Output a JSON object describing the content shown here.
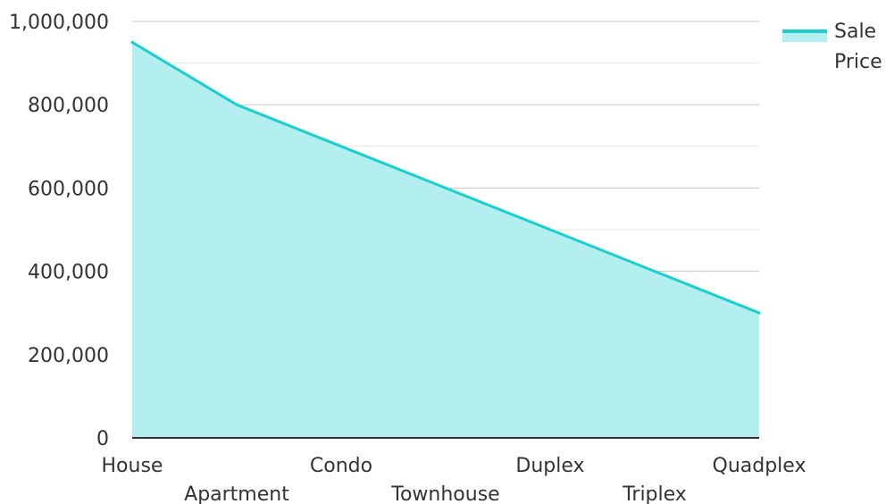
{
  "chart_data": {
    "type": "area",
    "categories": [
      "House",
      "Apartment",
      "Condo",
      "Townhouse",
      "Duplex",
      "Triplex",
      "Quadplex"
    ],
    "series": [
      {
        "name": "Sale Price",
        "values": [
          950000,
          800000,
          700000,
          600000,
          500000,
          400000,
          300000
        ],
        "color": "#1bcfcf",
        "fill": "#b2efee"
      }
    ],
    "ylim": [
      0,
      1000000
    ],
    "yticks": [
      0,
      200000,
      400000,
      600000,
      800000,
      1000000
    ],
    "ytick_labels": [
      "0",
      "200,000",
      "400,000",
      "600,000",
      "800,000",
      "1,000,000"
    ],
    "grid": true,
    "legend": {
      "position": "top-right",
      "lines": [
        "Sale",
        "Price"
      ]
    }
  }
}
